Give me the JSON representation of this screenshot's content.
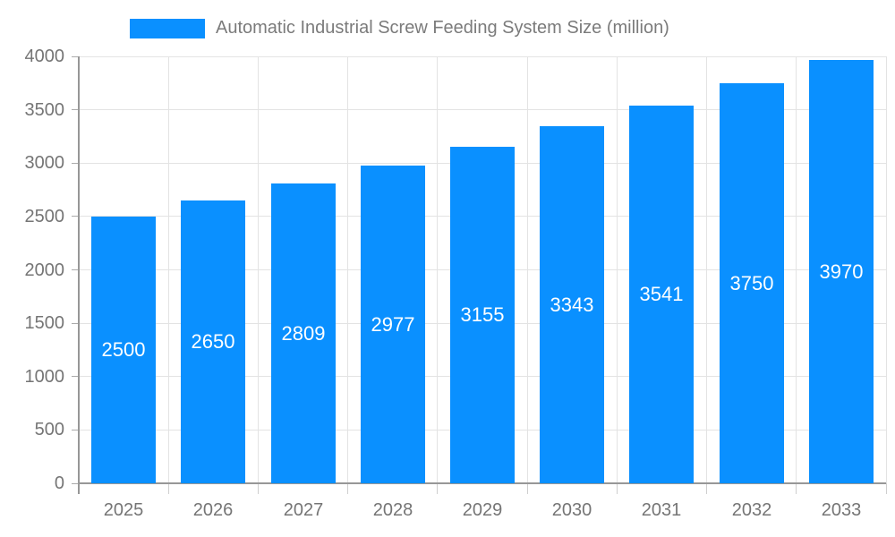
{
  "legend": {
    "label": "Automatic Industrial Screw Feeding System Size (million)"
  },
  "chart_data": {
    "type": "bar",
    "title": "Automatic Industrial Screw Feeding System Size (million)",
    "categories": [
      "2025",
      "2026",
      "2027",
      "2028",
      "2029",
      "2030",
      "2031",
      "2032",
      "2033"
    ],
    "series": [
      {
        "name": "Automatic Industrial Screw Feeding System Size (million)",
        "values": [
          2500,
          2650,
          2809,
          2977,
          3155,
          3343,
          3541,
          3750,
          3970
        ]
      }
    ],
    "xlabel": "",
    "ylabel": "",
    "ylim": [
      0,
      4000
    ],
    "y_ticks": [
      0,
      500,
      1000,
      1500,
      2000,
      2500,
      3000,
      3500,
      4000
    ],
    "grid": true,
    "legend_position": "top-center",
    "value_label_position": "inside-center",
    "colors": {
      "bar": "#0a90ff",
      "value_label": "#ffffff",
      "axis": "#979797",
      "grid": "#e3e3e3",
      "tick_label": "#757575",
      "legend_text": "#7b7b7b",
      "background": "#ffffff"
    }
  }
}
